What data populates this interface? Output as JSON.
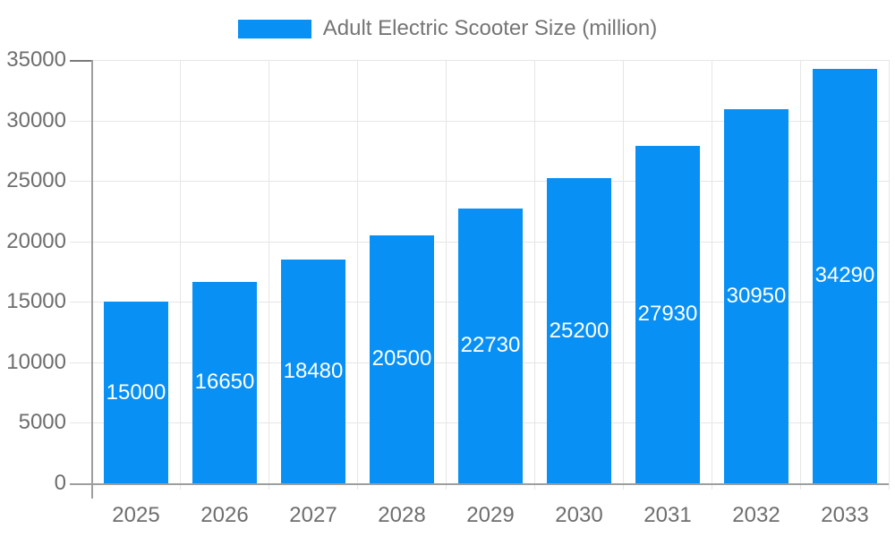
{
  "legend": {
    "label": "Adult Electric Scooter Size (million)"
  },
  "chart_data": {
    "type": "bar",
    "title": "",
    "xlabel": "",
    "ylabel": "",
    "categories": [
      "2025",
      "2026",
      "2027",
      "2028",
      "2029",
      "2030",
      "2031",
      "2032",
      "2033"
    ],
    "series": [
      {
        "name": "Adult Electric Scooter Size (million)",
        "values": [
          15000,
          16650,
          18480,
          20500,
          22730,
          25200,
          27930,
          30950,
          34290
        ]
      }
    ],
    "value_labels": [
      "15000",
      "16650",
      "18480",
      "20500",
      "22730",
      "25200",
      "27930",
      "30950",
      "34290"
    ],
    "ylim": [
      0,
      35000
    ],
    "yticks": [
      0,
      5000,
      10000,
      15000,
      20000,
      25000,
      30000,
      35000
    ],
    "ytick_labels": [
      "0",
      "5000",
      "10000",
      "15000",
      "20000",
      "25000",
      "30000",
      "35000"
    ],
    "grid": true,
    "legend_position": "top"
  },
  "colors": {
    "bar": "#0990f5",
    "grid": "#e6e6e6",
    "axis": "#9e9e9e",
    "dark_tick": "#7a7a7a",
    "axis_text": "#6e6e6e",
    "legend_text": "#757575",
    "value_text": "#ffffff",
    "background": "#ffffff"
  }
}
